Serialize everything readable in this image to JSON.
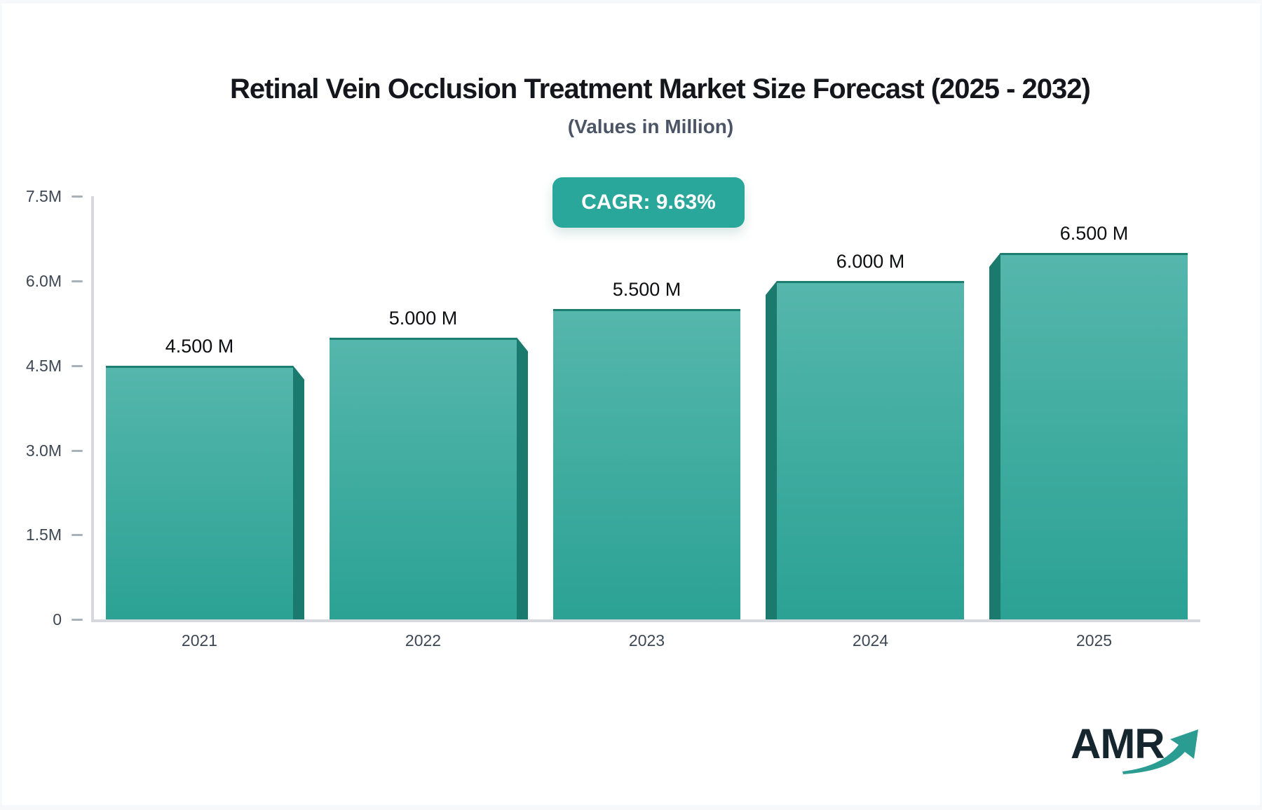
{
  "title": "Retinal Vein Occlusion Treatment Market Size Forecast (2025 - 2032)",
  "subtitle": "(Values in Million)",
  "badge": {
    "label": "CAGR: 9.63%",
    "bg_color": "#2aa79b",
    "text_color": "#ffffff"
  },
  "chart_data": {
    "type": "bar",
    "categories": [
      "2021",
      "2022",
      "2023",
      "2024",
      "2025"
    ],
    "values": [
      4.5,
      5.0,
      5.5,
      6.0,
      6.5
    ],
    "bar_labels": [
      "4.500 M",
      "5.000 M",
      "5.500 M",
      "6.000 M",
      "6.500 M"
    ],
    "title": "Retinal Vein Occlusion Treatment Market Size Forecast (2025 - 2032)",
    "subtitle": "(Values in Million)",
    "xlabel": "",
    "ylabel": "",
    "ylim": [
      0,
      7.5
    ],
    "grid": false,
    "legend": "none",
    "style": "3d-bars-perspective-toward-center",
    "y_axis": {
      "ticks": [
        {
          "label": "0",
          "value": 0
        },
        {
          "label": "1.5M",
          "value": 1.5
        },
        {
          "label": "3.0M",
          "value": 3.0
        },
        {
          "label": "4.5M",
          "value": 4.5
        },
        {
          "label": "6.0M",
          "value": 6.0
        },
        {
          "label": "7.5M",
          "value": 7.5
        }
      ]
    },
    "colors": {
      "bar_gradient_top": "#55b6ac",
      "bar_gradient_bottom": "#2ba294",
      "bar_top_border": "#1e7e72",
      "bar_3d_edge": "#1a7a6e",
      "axis_line": "#d5d9de",
      "tick_dash": "#a8b0ba",
      "tick_text": "#3e4754",
      "value_label_text": "#0e0f12"
    }
  },
  "logo": {
    "text": "AMR",
    "text_color": "#16262e",
    "arrow_color": "#2b9c91"
  }
}
